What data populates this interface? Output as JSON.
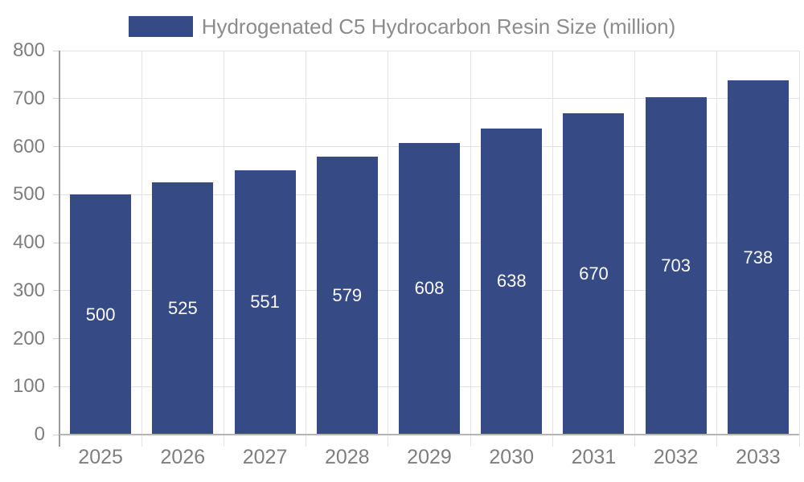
{
  "chart_data": {
    "type": "bar",
    "title": "Hydrogenated C5 Hydrocarbon Resin Size (million)",
    "legend": [
      "Hydrogenated C5 Hydrocarbon Resin Size (million)"
    ],
    "legend_position": "top-center",
    "categories": [
      "2025",
      "2026",
      "2027",
      "2028",
      "2029",
      "2030",
      "2031",
      "2032",
      "2033"
    ],
    "values": [
      500,
      525,
      551,
      579,
      608,
      638,
      670,
      703,
      738
    ],
    "xlabel": "",
    "ylabel": "",
    "ylim": [
      0,
      800
    ],
    "yticks": [
      0,
      100,
      200,
      300,
      400,
      500,
      600,
      700,
      800
    ],
    "grid": true,
    "colors": {
      "bar": "#364A85",
      "bar_label": "#FAFAFA",
      "grid_line": "#E3E3E3",
      "axis_line_y": "#9A9A9A",
      "axis_line_x": "#B5B5B5",
      "tick_mark": "#CFCFCF",
      "tick_label": "#7E7E7E",
      "legend_label": "#8C8C8C",
      "background": "#FFFFFF"
    }
  }
}
